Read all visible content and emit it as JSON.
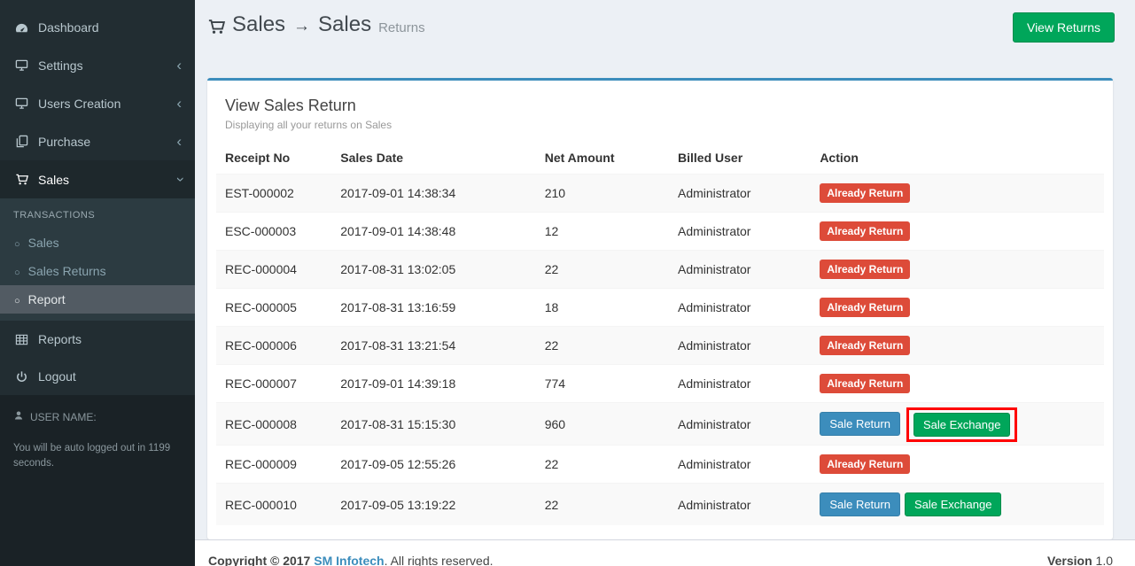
{
  "sidebar": {
    "items": [
      {
        "label": "Dashboard",
        "icon": "dashboard-icon"
      },
      {
        "label": "Settings",
        "icon": "desktop-icon"
      },
      {
        "label": "Users Creation",
        "icon": "desktop-icon"
      },
      {
        "label": "Purchase",
        "icon": "copy-icon"
      },
      {
        "label": "Sales",
        "icon": "cart-icon"
      }
    ],
    "section_label": "TRANSACTIONS",
    "sub_items": [
      {
        "label": "Sales"
      },
      {
        "label": "Sales Returns"
      },
      {
        "label": "Report"
      }
    ],
    "secondary_items": [
      {
        "label": "Reports",
        "icon": "table-icon"
      },
      {
        "label": "Logout",
        "icon": "power-icon"
      }
    ],
    "user_label": "USER NAME:",
    "logout_notice": "You will be auto logged out in 1199 seconds."
  },
  "header": {
    "crumb_root": "Sales",
    "crumb_section": "Sales",
    "crumb_page": "Returns",
    "view_returns": "View Returns"
  },
  "panel": {
    "title": "View Sales Return",
    "subtitle": "Displaying all your returns on Sales"
  },
  "table": {
    "columns": [
      "Receipt No",
      "Sales Date",
      "Net Amount",
      "Billed User",
      "Action"
    ],
    "rows": [
      {
        "receipt": "EST-000002",
        "date": "2017-09-01 14:38:34",
        "amount": "210",
        "user": "Administrator",
        "actions": [
          {
            "label": "Already Return",
            "type": "badge"
          }
        ]
      },
      {
        "receipt": "ESC-000003",
        "date": "2017-09-01 14:38:48",
        "amount": "12",
        "user": "Administrator",
        "actions": [
          {
            "label": "Already Return",
            "type": "badge"
          }
        ]
      },
      {
        "receipt": "REC-000004",
        "date": "2017-08-31 13:02:05",
        "amount": "22",
        "user": "Administrator",
        "actions": [
          {
            "label": "Already Return",
            "type": "badge"
          }
        ]
      },
      {
        "receipt": "REC-000005",
        "date": "2017-08-31 13:16:59",
        "amount": "18",
        "user": "Administrator",
        "actions": [
          {
            "label": "Already Return",
            "type": "badge"
          }
        ]
      },
      {
        "receipt": "REC-000006",
        "date": "2017-08-31 13:21:54",
        "amount": "22",
        "user": "Administrator",
        "actions": [
          {
            "label": "Already Return",
            "type": "badge"
          }
        ]
      },
      {
        "receipt": "REC-000007",
        "date": "2017-09-01 14:39:18",
        "amount": "774",
        "user": "Administrator",
        "actions": [
          {
            "label": "Already Return",
            "type": "badge"
          }
        ]
      },
      {
        "receipt": "REC-000008",
        "date": "2017-08-31 15:15:30",
        "amount": "960",
        "user": "Administrator",
        "actions": [
          {
            "label": "Sale Return",
            "type": "blue"
          },
          {
            "label": "Sale Exchange",
            "type": "green",
            "highlight": true
          }
        ]
      },
      {
        "receipt": "REC-000009",
        "date": "2017-09-05 12:55:26",
        "amount": "22",
        "user": "Administrator",
        "actions": [
          {
            "label": "Already Return",
            "type": "badge"
          }
        ]
      },
      {
        "receipt": "REC-000010",
        "date": "2017-09-05 13:19:22",
        "amount": "22",
        "user": "Administrator",
        "actions": [
          {
            "label": "Sale Return",
            "type": "blue"
          },
          {
            "label": "Sale Exchange",
            "type": "green"
          }
        ]
      }
    ]
  },
  "footer": {
    "copyright_bold": "Copyright © 2017",
    "brand": "SM Infotech",
    "rest": ". All rights reserved.",
    "version_label": "Version",
    "version_value": "1.0"
  },
  "colors": {
    "top_accent": "#00b0b0",
    "sidebar_bg": "#222d32",
    "sidebar_submenu_bg": "#2c3b41",
    "sidebar_active_bg": "#1e282c",
    "content_bg": "#ecf0f5",
    "card_top_border": "#3c8dbc",
    "green_button": "#00a65a",
    "blue_button": "#3c8dbc",
    "danger_badge": "#dd4b39",
    "annotation_red": "#ff0000"
  }
}
